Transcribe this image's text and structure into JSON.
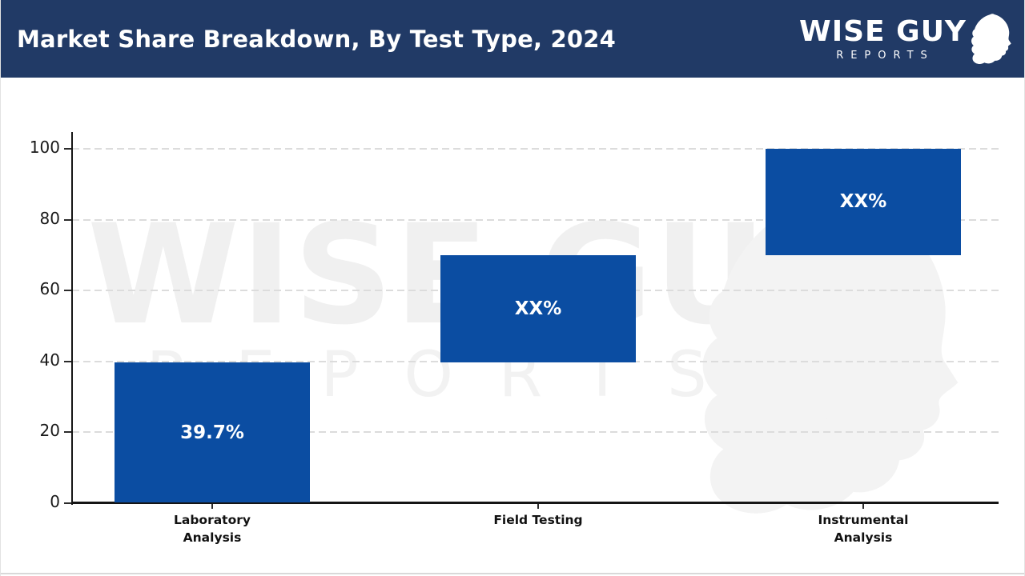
{
  "header": {
    "title": "Market Share Breakdown, By Test Type, 2024",
    "logo": {
      "name": "WISE GUY",
      "sub": "REPORTS"
    }
  },
  "watermark": {
    "line1": "WISE GUY",
    "line2": "REPORTS"
  },
  "colors": {
    "header_bg": "#213a66",
    "bar": "#0b4da2",
    "grid": "#dcdcdc",
    "axis": "#151515",
    "watermark": "#f1f1f1",
    "bar_label": "#ffffff"
  },
  "chart_data": {
    "type": "bar",
    "subtype": "floating-waterfall-columns",
    "title": "Market Share Breakdown, By Test Type, 2024",
    "xlabel": "",
    "ylabel": "",
    "ylim": [
      0,
      100
    ],
    "yticks": [
      0,
      20,
      40,
      60,
      80,
      100
    ],
    "grid": "horizontal-dashed",
    "legend": "none",
    "categories": [
      "Laboratory\nAnalysis",
      "Field Testing",
      "Instrumental\nAnalysis"
    ],
    "bars": [
      {
        "category": "Laboratory Analysis",
        "start": 0,
        "end": 39.7,
        "label": "39.7%"
      },
      {
        "category": "Field Testing",
        "start": 39.7,
        "end": 70,
        "label": "XX%"
      },
      {
        "category": "Instrumental Analysis",
        "start": 70,
        "end": 100,
        "label": "XX%"
      }
    ]
  }
}
